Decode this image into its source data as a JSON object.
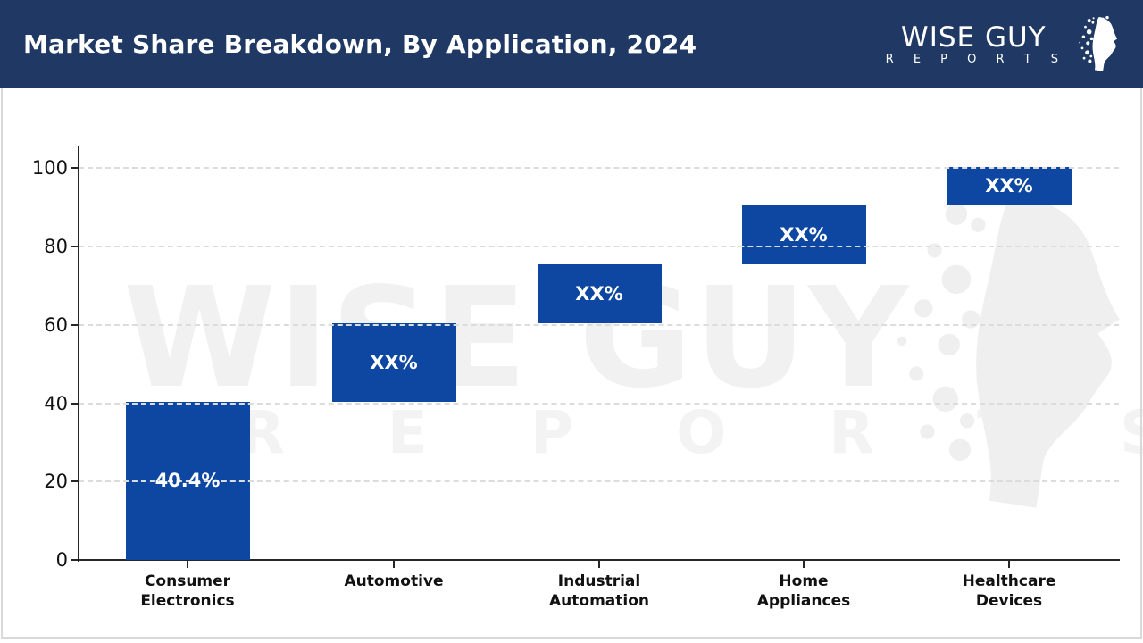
{
  "header": {
    "title": "Market Share Breakdown, By Application, 2024"
  },
  "logo": {
    "name_top": "WISE GUY",
    "name_bottom": "R E P O R T S"
  },
  "watermark": {
    "text_top": "WISE GUY",
    "text_bottom": "R E P O R T S"
  },
  "chart_data": {
    "type": "bar",
    "subtype": "waterfall",
    "title": "Market Share Breakdown, By Application, 2024",
    "categories": [
      "Consumer Electronics",
      "Automotive",
      "Industrial Automation",
      "Home Appliances",
      "Healthcare Devices"
    ],
    "category_label_lines": [
      [
        "Consumer",
        "Electronics"
      ],
      [
        "Automotive"
      ],
      [
        "Industrial",
        "Automation"
      ],
      [
        "Home",
        "Appliances"
      ],
      [
        "Healthcare",
        "Devices"
      ]
    ],
    "segments": [
      {
        "category": "Consumer Electronics",
        "start": 0,
        "end": 40.4,
        "label": "40.4%"
      },
      {
        "category": "Automotive",
        "start": 40.4,
        "end": 60.4,
        "label": "XX%"
      },
      {
        "category": "Industrial Automation",
        "start": 60.4,
        "end": 75.4,
        "label": "XX%"
      },
      {
        "category": "Home Appliances",
        "start": 75.4,
        "end": 90.4,
        "label": "XX%"
      },
      {
        "category": "Healthcare Devices",
        "start": 90.4,
        "end": 100.4,
        "label": "XX%"
      }
    ],
    "yticks": [
      0,
      20,
      40,
      60,
      80,
      100
    ],
    "ylim": [
      0,
      105.8
    ],
    "xlabel": "",
    "ylabel": "",
    "grid": "horizontal dashed",
    "legend": "none",
    "colors": {
      "bar": "#0d47a1",
      "bar_label": "#ffffff",
      "grid": "#dcdcdc",
      "axis": "#262626",
      "header_bg": "#1f3864",
      "header_text": "#ffffff",
      "watermark": "#f1f1f1"
    }
  }
}
